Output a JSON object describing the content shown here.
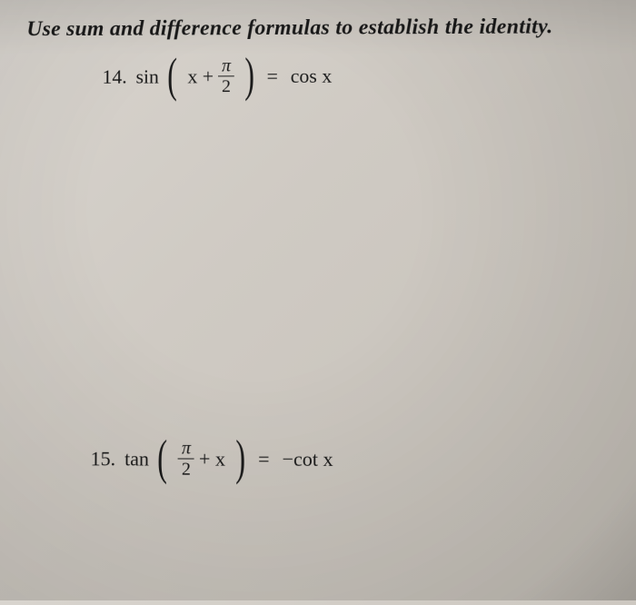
{
  "instruction": "Use sum and difference formulas to establish the identity.",
  "problems": {
    "p14": {
      "number": "14.",
      "func": "sin",
      "lparen": "(",
      "arg_left": "x +",
      "frac_num": "π",
      "frac_den": "2",
      "rparen": ")",
      "eq": "=",
      "rhs": "cos x"
    },
    "p15": {
      "number": "15.",
      "func": "tan",
      "lparen": "(",
      "frac_num": "π",
      "frac_den": "2",
      "arg_right": "+ x",
      "rparen": ")",
      "eq": "=",
      "rhs": "−cot x"
    }
  },
  "colors": {
    "text": "#1a1a1a",
    "bg_light": "#d8d4ce",
    "bg_dark": "#c5c0b8"
  },
  "typography": {
    "instruction_fontsize": 24,
    "body_fontsize": 22,
    "frac_fontsize": 20,
    "font_family": "Georgia, Times New Roman, serif"
  }
}
